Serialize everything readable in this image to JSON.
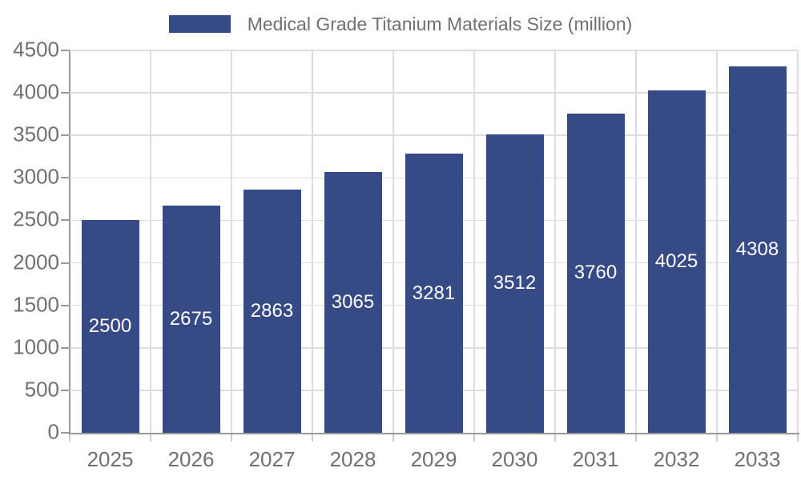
{
  "legend": {
    "label": "Medical Grade Titanium Materials Size (million)"
  },
  "chart_data": {
    "type": "bar",
    "title": "",
    "xlabel": "",
    "ylabel": "",
    "series_name": "Medical Grade Titanium Materials Size (million)",
    "categories": [
      "2025",
      "2026",
      "2027",
      "2028",
      "2029",
      "2030",
      "2031",
      "2032",
      "2033"
    ],
    "values": [
      2500,
      2675,
      2863,
      3065,
      3281,
      3512,
      3760,
      4025,
      4308
    ],
    "value_labels": [
      "2500",
      "2675",
      "2863",
      "3065",
      "3281",
      "3512",
      "3760",
      "4025",
      "4308"
    ],
    "ylim": [
      0,
      4500
    ],
    "yticks": [
      0,
      500,
      1000,
      1500,
      2000,
      2500,
      3000,
      3500,
      4000,
      4500
    ],
    "grid": true,
    "legend_position": "top",
    "colors": {
      "bar": "#364a85",
      "grid": "#dddddd",
      "axis": "#999999",
      "tick": "#cccccc",
      "text": "#707070",
      "value_text": "#ffffff",
      "background": "#ffffff"
    }
  }
}
